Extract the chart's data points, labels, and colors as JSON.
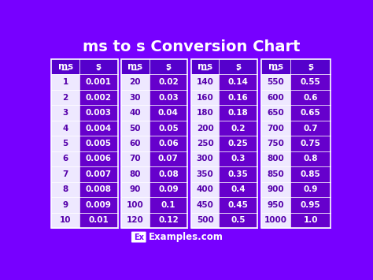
{
  "title": "ms to s Conversion Chart",
  "bg_color": "#7700FF",
  "table_border_color": "#FFFFFF",
  "header_bg": "#5500CC",
  "ms_cell_bg": "#EEE8FF",
  "s_cell_bg": "#6600CC",
  "ms_cell_text": "#5500AA",
  "s_cell_text": "#FFFFFF",
  "header_text_color": "#FFFFFF",
  "columns": [
    {
      "ms": [
        1,
        2,
        3,
        4,
        5,
        6,
        7,
        8,
        9,
        10
      ],
      "s": [
        "0.001",
        "0.002",
        "0.003",
        "0.004",
        "0.005",
        "0.006",
        "0.007",
        "0.008",
        "0.009",
        "0.01"
      ]
    },
    {
      "ms": [
        20,
        30,
        40,
        50,
        60,
        70,
        80,
        90,
        100,
        120
      ],
      "s": [
        "0.02",
        "0.03",
        "0.04",
        "0.05",
        "0.06",
        "0.07",
        "0.08",
        "0.09",
        "0.1",
        "0.12"
      ]
    },
    {
      "ms": [
        140,
        160,
        180,
        200,
        250,
        300,
        350,
        400,
        450,
        500
      ],
      "s": [
        "0.14",
        "0.16",
        "0.18",
        "0.2",
        "0.25",
        "0.3",
        "0.35",
        "0.4",
        "0.45",
        "0.5"
      ]
    },
    {
      "ms": [
        550,
        600,
        650,
        700,
        750,
        800,
        850,
        900,
        950,
        1000
      ],
      "s": [
        "0.55",
        "0.6",
        "0.65",
        "0.7",
        "0.75",
        "0.8",
        "0.85",
        "0.9",
        "0.95",
        "1.0"
      ]
    }
  ],
  "footer_text": "Examples.com",
  "footer_ex": "Ex",
  "title_fontsize": 14,
  "header_fontsize": 8.5,
  "cell_fontsize": 7.5,
  "footer_fontsize": 8.5
}
